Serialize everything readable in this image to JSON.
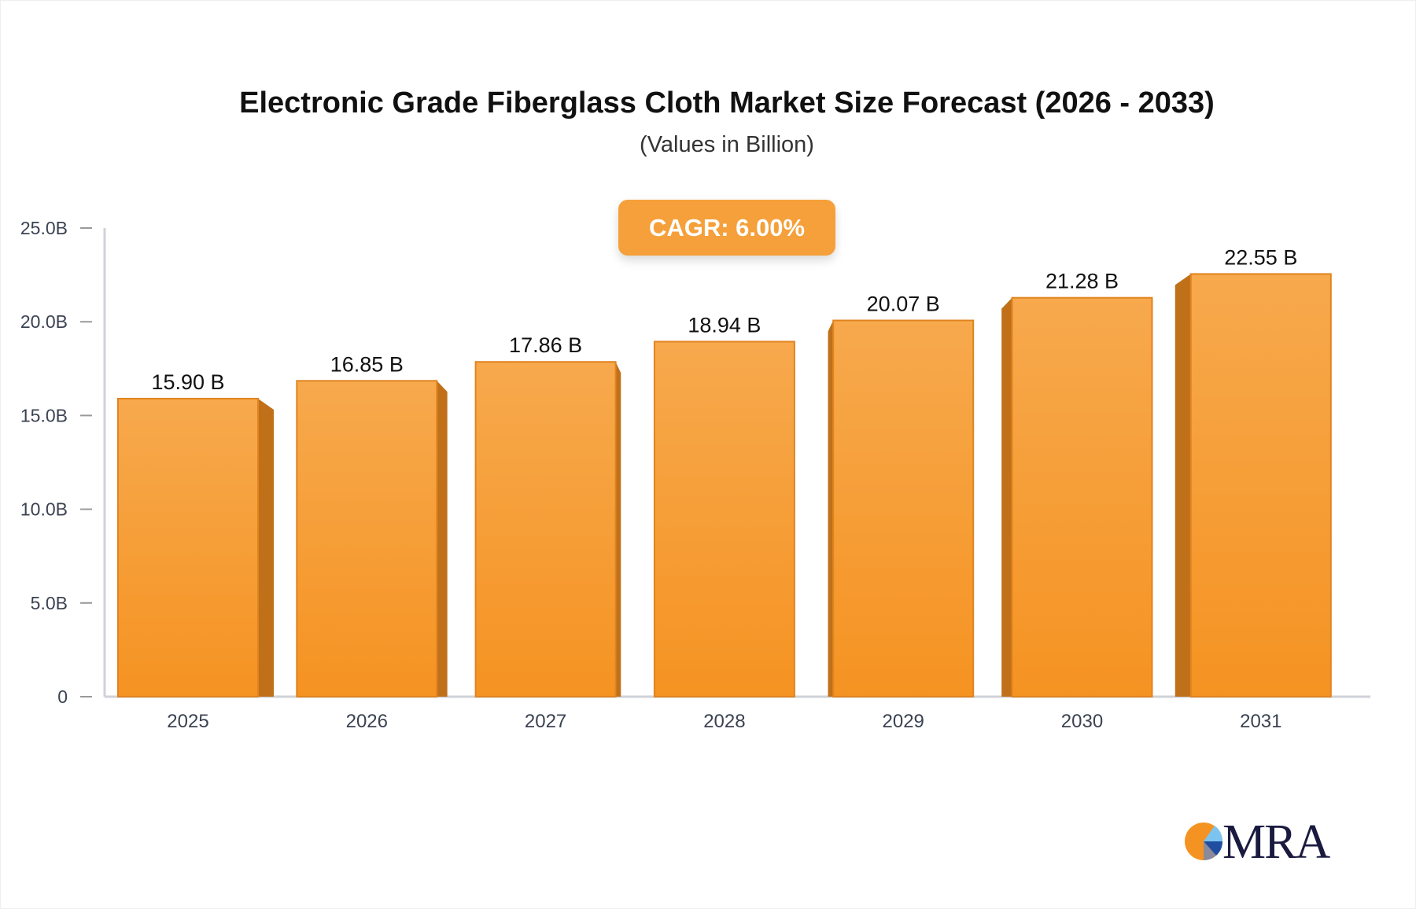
{
  "chart_data": {
    "type": "bar",
    "title": "Electronic Grade Fiberglass Cloth Market Size Forecast (2026 - 2033)",
    "subtitle": "(Values in Billion)",
    "annotation": "CAGR: 6.00%",
    "categories": [
      "2025",
      "2026",
      "2027",
      "2028",
      "2029",
      "2030",
      "2031"
    ],
    "values": [
      15.9,
      16.85,
      17.86,
      18.94,
      20.07,
      21.28,
      22.55
    ],
    "data_labels": [
      "15.90 B",
      "16.85 B",
      "17.86 B",
      "18.94 B",
      "20.07 B",
      "21.28 B",
      "22.55 B"
    ],
    "ylim": [
      0,
      25
    ],
    "yticks": [
      0,
      5,
      10,
      15,
      20,
      25
    ],
    "ytick_labels": [
      "0",
      "5.0B",
      "10.0B",
      "15.0B",
      "20.0B",
      "25.0B"
    ],
    "grid": false,
    "colors": {
      "bar_top": "#f7a94d",
      "bar_bottom": "#f59322",
      "bar_side": "#bf7019",
      "bar_edge": "#e08420"
    }
  },
  "logo": {
    "text": "MRA"
  }
}
